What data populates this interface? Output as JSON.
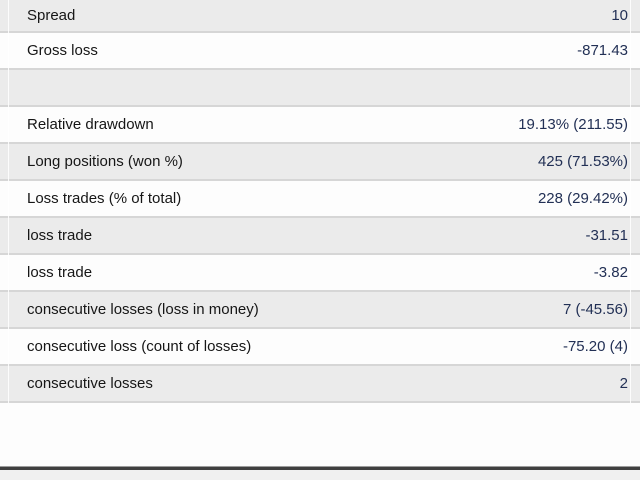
{
  "table": {
    "rows": [
      {
        "label": "Spread",
        "value": "10"
      },
      {
        "label": "Gross loss",
        "value": "-871.43"
      },
      {
        "label": "",
        "value": ""
      },
      {
        "label": "Relative drawdown",
        "value": "19.13% (211.55)"
      },
      {
        "label": "Long positions (won %)",
        "value": "425 (71.53%)"
      },
      {
        "label": "Loss trades (% of total)",
        "value": "228 (29.42%)"
      },
      {
        "label": "loss trade",
        "value": "-31.51"
      },
      {
        "label": "loss trade",
        "value": "-3.82"
      },
      {
        "label": "consecutive losses (loss in money)",
        "value": "7 (-45.56)"
      },
      {
        "label": "consecutive loss (count of losses)",
        "value": "-75.20 (4)"
      },
      {
        "label": "consecutive losses",
        "value": "2"
      }
    ]
  },
  "colors": {
    "row_gray": "#ebebeb",
    "row_white": "#fdfdfd",
    "separator": "#d6d6d6",
    "label_color": "#161616",
    "value_color": "#223055",
    "panel_border": "#3f3f3f",
    "window_bg": "#f0f0f0"
  }
}
